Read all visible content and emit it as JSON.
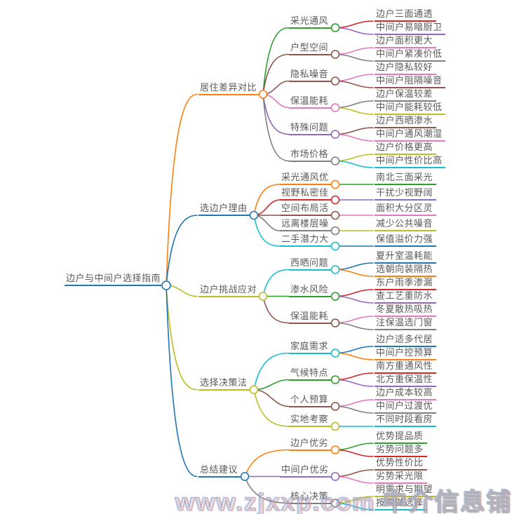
{
  "palette": {
    "blue": "#1f77b4",
    "orange": "#ff7f0e",
    "green": "#2ca02c",
    "red": "#d62728",
    "purple": "#9467bd",
    "brown": "#8c564b",
    "pink": "#e377c2",
    "gray": "#7f7f7f",
    "olive": "#bcbd22",
    "cyan": "#17becf"
  },
  "styles": {
    "text_color": "#595959",
    "background": "#ffffff",
    "dot_fill": "#ffffff"
  },
  "root": {
    "label": "边户与中间户选择指南",
    "color": "blue"
  },
  "branches": [
    {
      "label": "居住差异对比",
      "color": "orange",
      "topics": [
        {
          "label": "采光通风",
          "color": "green",
          "leaves": [
            {
              "label": "边户三面通透",
              "color": "red"
            },
            {
              "label": "中间户易暗厨卫",
              "color": "purple"
            }
          ]
        },
        {
          "label": "户型空间",
          "color": "brown",
          "leaves": [
            {
              "label": "边户面积更大",
              "color": "pink"
            },
            {
              "label": "中间户紧凑价低",
              "color": "gray"
            }
          ]
        },
        {
          "label": "隐私噪音",
          "color": "brown",
          "leaves": [
            {
              "label": "边户隐私较好",
              "color": "pink"
            },
            {
              "label": "中间户阻隔噪音",
              "color": "brown"
            }
          ]
        },
        {
          "label": "保温能耗",
          "color": "pink",
          "leaves": [
            {
              "label": "边户保温较差",
              "color": "gray"
            },
            {
              "label": "中间户能耗较低",
              "color": "olive"
            }
          ]
        },
        {
          "label": "特殊问题",
          "color": "purple",
          "leaves": [
            {
              "label": "边户西晒渗水",
              "color": "brown"
            },
            {
              "label": "中间户通风潮湿",
              "color": "pink"
            }
          ]
        },
        {
          "label": "市场价格",
          "color": "gray",
          "leaves": [
            {
              "label": "边户价格更高",
              "color": "olive"
            },
            {
              "label": "中间户性价比高",
              "color": "cyan"
            }
          ]
        }
      ]
    },
    {
      "label": "选边户理由",
      "color": "blue",
      "topics": [
        {
          "label": "采光通风优",
          "color": "orange",
          "leaves": [
            {
              "label": "南北三面采光",
              "color": "green"
            }
          ]
        },
        {
          "label": "视野私密佳",
          "color": "red",
          "leaves": [
            {
              "label": "干扰少视野阔",
              "color": "purple"
            }
          ]
        },
        {
          "label": "空间布局活",
          "color": "brown",
          "leaves": [
            {
              "label": "面积大分区灵",
              "color": "pink"
            }
          ]
        },
        {
          "label": "远离楼层噪",
          "color": "gray",
          "leaves": [
            {
              "label": "减少公共噪音",
              "color": "olive"
            }
          ]
        },
        {
          "label": "二手潜力大",
          "color": "cyan",
          "leaves": [
            {
              "label": "保值溢价力强",
              "color": "blue"
            }
          ]
        }
      ]
    },
    {
      "label": "边户挑战应对",
      "color": "olive",
      "topics": [
        {
          "label": "西晒问题",
          "color": "cyan",
          "leaves": [
            {
              "label": "夏升室温耗能",
              "color": "blue"
            },
            {
              "label": "选朝向装隔热",
              "color": "orange"
            }
          ]
        },
        {
          "label": "渗水风险",
          "color": "green",
          "leaves": [
            {
              "label": "东户雨季渗漏",
              "color": "red"
            },
            {
              "label": "查工艺重防水",
              "color": "purple"
            }
          ]
        },
        {
          "label": "保温能耗",
          "color": "brown",
          "leaves": [
            {
              "label": "冬夏散热吸热",
              "color": "pink"
            },
            {
              "label": "注保温选门窗",
              "color": "gray"
            }
          ]
        }
      ]
    },
    {
      "label": "选择决策法",
      "color": "olive",
      "topics": [
        {
          "label": "家庭需求",
          "color": "cyan",
          "leaves": [
            {
              "label": "边户适多代居",
              "color": "blue"
            },
            {
              "label": "中间户控预算",
              "color": "orange"
            }
          ]
        },
        {
          "label": "气候特点",
          "color": "green",
          "leaves": [
            {
              "label": "南方重通风性",
              "color": "red"
            },
            {
              "label": "北方重保温性",
              "color": "purple"
            }
          ]
        },
        {
          "label": "个人预算",
          "color": "brown",
          "leaves": [
            {
              "label": "边户成本较高",
              "color": "pink"
            },
            {
              "label": "中间户过渡优",
              "color": "gray"
            }
          ]
        },
        {
          "label": "实地考察",
          "color": "olive",
          "leaves": [
            {
              "label": "不同时段看房",
              "color": "cyan"
            }
          ]
        }
      ]
    },
    {
      "label": "总结建议",
      "color": "blue",
      "topics": [
        {
          "label": "边户优劣",
          "color": "orange",
          "leaves": [
            {
              "label": "优势提品质",
              "color": "green"
            },
            {
              "label": "劣势问题多",
              "color": "red"
            }
          ]
        },
        {
          "label": "中间户优劣",
          "color": "purple",
          "leaves": [
            {
              "label": "优势性价比",
              "color": "brown"
            },
            {
              "label": "劣势采光限",
              "color": "pink"
            }
          ]
        },
        {
          "label": "核心决策",
          "color": "gray",
          "leaves": [
            {
              "label": "明需求与期望",
              "color": "olive"
            },
            {
              "label": "按需做选择",
              "color": "cyan"
            }
          ]
        }
      ]
    }
  ],
  "watermark": {
    "url": "www.zjxxp.com",
    "site": "中介信息铺网"
  }
}
